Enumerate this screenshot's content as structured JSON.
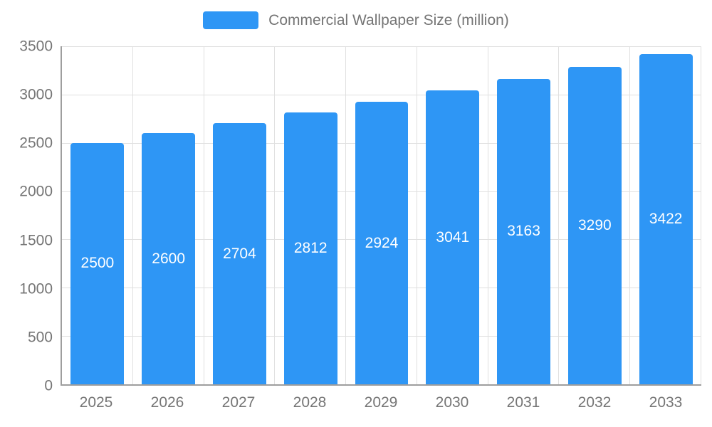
{
  "legend": {
    "label": "Commercial Wallpaper Size (million)"
  },
  "chart_data": {
    "type": "bar",
    "title": "Commercial Wallpaper Size (million)",
    "series_name": "Commercial Wallpaper Size (million)",
    "categories": [
      "2025",
      "2026",
      "2027",
      "2028",
      "2029",
      "2030",
      "2031",
      "2032",
      "2033"
    ],
    "values": [
      2500,
      2600,
      2704,
      2812,
      2924,
      3041,
      3163,
      3290,
      3422
    ],
    "xlabel": "",
    "ylabel": "",
    "ylim": [
      0,
      3500
    ],
    "ytick_step": 500,
    "grid": true,
    "legend_position": "top",
    "bar_color": "#2E96F5",
    "value_label_color": "#ffffff",
    "axis_label_color": "#757575"
  }
}
